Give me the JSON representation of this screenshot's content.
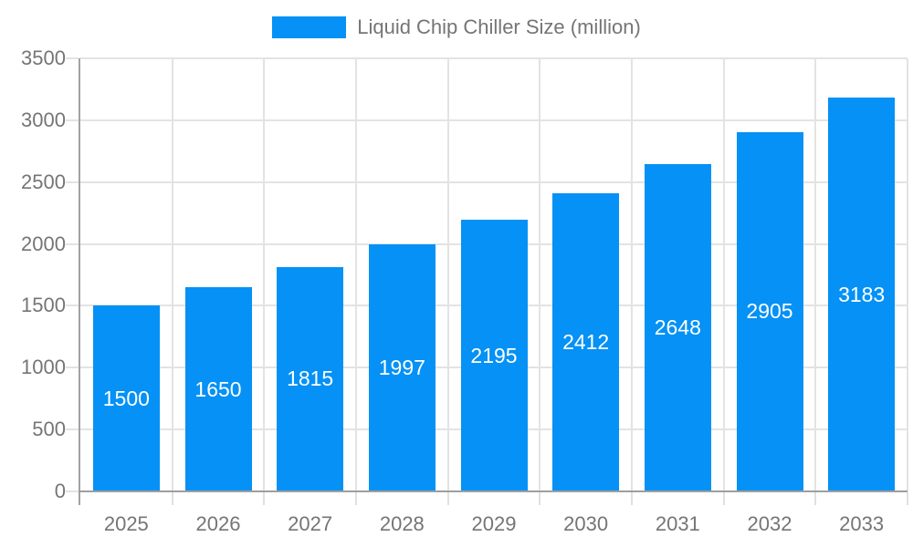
{
  "chart_data": {
    "type": "bar",
    "title": "Liquid Chip Chiller Size (million)",
    "categories": [
      "2025",
      "2026",
      "2027",
      "2028",
      "2029",
      "2030",
      "2031",
      "2032",
      "2033"
    ],
    "values": [
      1500,
      1650,
      1815,
      1997,
      2195,
      2412,
      2648,
      2905,
      3183
    ],
    "series": [
      {
        "name": "Liquid Chip Chiller Size (million)",
        "values": [
          1500,
          1650,
          1815,
          1997,
          2195,
          2412,
          2648,
          2905,
          3183
        ]
      }
    ],
    "xlabel": "",
    "ylabel": "",
    "ylim": [
      0,
      3500
    ],
    "yticks": [
      0,
      500,
      1000,
      1500,
      2000,
      2500,
      3000,
      3500
    ],
    "grid": true,
    "legend_position": "top-center",
    "bar_labels_inside": true,
    "bar_color": "#0591f5",
    "bar_label_color": "#ffffff",
    "axis_text_color": "#757575",
    "gridline_color": "#e3e3e3",
    "axis_line_color": "#9e9e9e"
  },
  "legend": {
    "label": "Liquid Chip Chiller Size (million)"
  }
}
